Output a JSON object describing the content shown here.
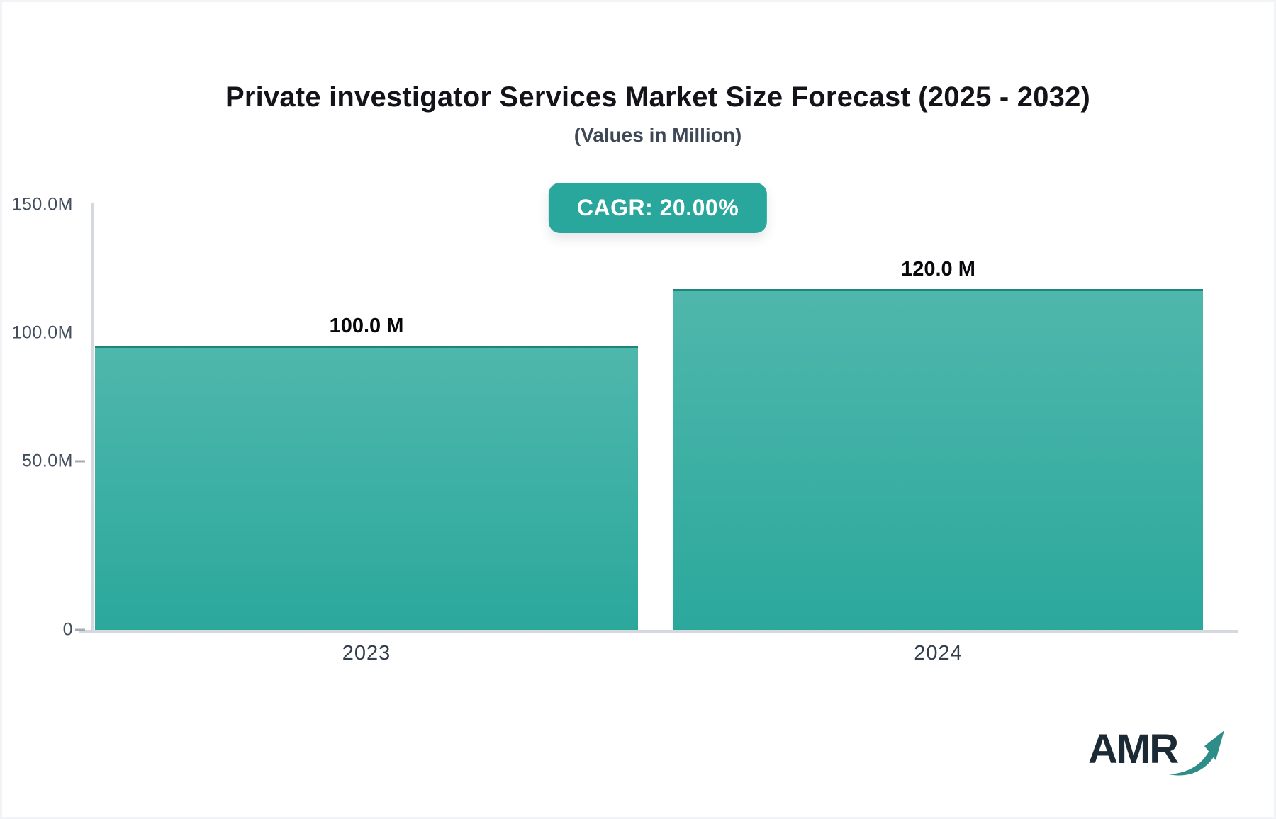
{
  "header": {
    "title": "Private investigator Services Market Size Forecast (2025 - 2032)",
    "subtitle": "(Values in Million)",
    "cagr_badge": "CAGR: 20.00%"
  },
  "chart_data": {
    "type": "bar",
    "title": "Private investigator Services Market Size Forecast (2025 - 2032)",
    "subtitle": "(Values in Million)",
    "categories": [
      "2023",
      "2024"
    ],
    "values": [
      100.0,
      120.0
    ],
    "bar_labels": [
      "100.0 M",
      "120.0 M"
    ],
    "y_tick_labels": [
      "150.0M",
      "100.0M",
      "50.0M",
      "0"
    ],
    "ylim": [
      0,
      150
    ],
    "xlabel": "",
    "ylabel": "",
    "grid": false,
    "legend": "none",
    "cagr_label": "CAGR: 20.00%"
  },
  "logo": {
    "text": "AMR"
  },
  "colors": {
    "badge_bg": "#2aa79c",
    "badge_text": "#ffffff",
    "bar_gradient_top": "#4fb7ac",
    "bar_gradient_bottom": "#2ba89c",
    "bar_top_border": "#1e857c",
    "axis_line": "#d5d8dd",
    "tick_text": "#424d5e",
    "title_text": "#13131a",
    "logo_text": "#1b2a35",
    "logo_arrow": "#2e8d89"
  }
}
